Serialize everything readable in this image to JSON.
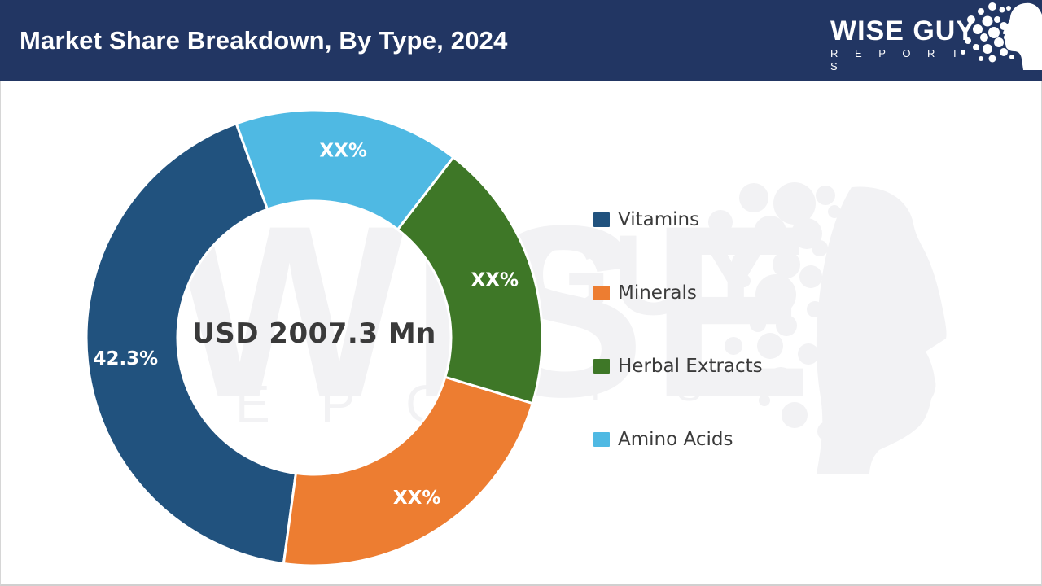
{
  "header": {
    "title": "Market Share Breakdown, By Type, 2024",
    "logo": {
      "line1": "WISE GUY",
      "line2": "R E P O R T S",
      "face_icon": "head-profile-dots-icon"
    }
  },
  "chart_data": {
    "type": "pie",
    "subtype": "donut",
    "title": "Market Share Breakdown, By Type, 2024",
    "center_label": "USD 2007.3 Mn",
    "start_angle_deg": 110,
    "direction": "counterclockwise",
    "inner_radius_ratio": 0.6,
    "legend_position": "right",
    "slices": [
      {
        "name": "Vitamins",
        "value": 42.3,
        "label": "42.3%",
        "color": "#21527E"
      },
      {
        "name": "Minerals",
        "value": 22.5,
        "label": "XX%",
        "color": "#ED7D31"
      },
      {
        "name": "Herbal Extracts",
        "value": 19.2,
        "label": "XX%",
        "color": "#3E7727"
      },
      {
        "name": "Amino Acids",
        "value": 16.0,
        "label": "XX%",
        "color": "#4FB9E3"
      }
    ]
  },
  "watermark": {
    "wise": "WISE",
    "guy": "GUY",
    "reports_fragment1": "EPO",
    "reports_fragment2": "TS"
  },
  "colors": {
    "header_bg": "#223663",
    "text_dark": "#3a3a3a",
    "watermark": "#f2f2f4"
  }
}
